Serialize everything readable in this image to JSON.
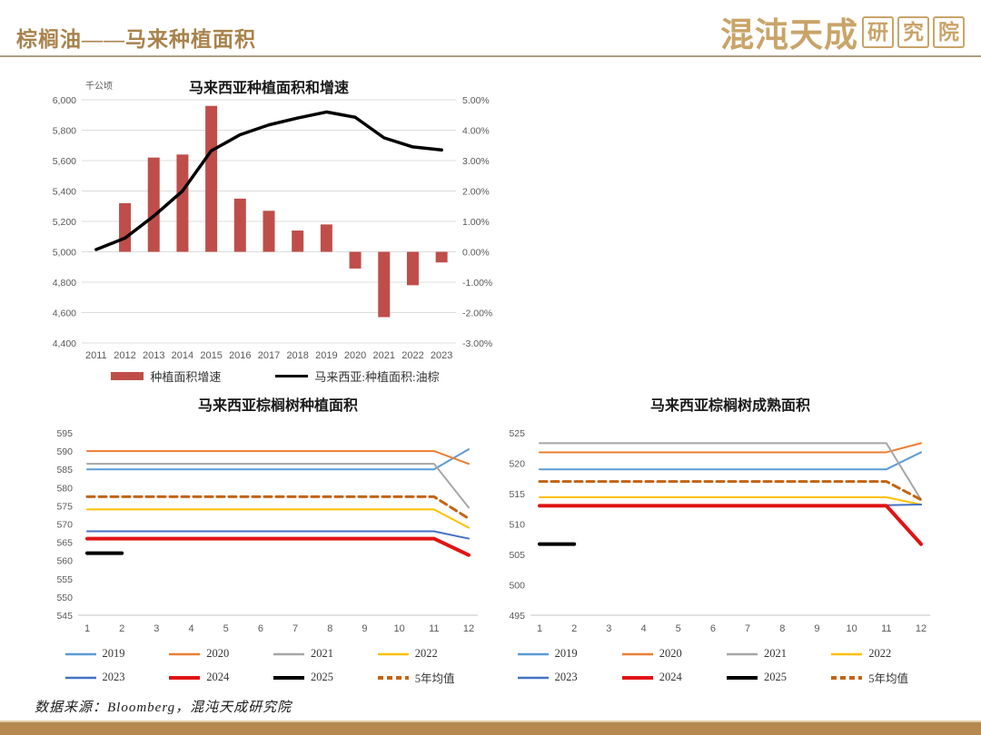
{
  "header": {
    "title": "棕榈油——马来种植面积",
    "logo": {
      "brand": "混沌天成",
      "suffix_chars": [
        "研",
        "究",
        "院"
      ]
    }
  },
  "footer": {
    "source": "数据来源：Bloomberg，混沌天成研究院"
  },
  "palette": {
    "accent_gold": "#a9834c",
    "logo_gold": "#c9a469",
    "bar_red": "#bf4e4a",
    "bottom_bar": "#b5894f",
    "gridline": "#dcdcdc",
    "axis_text": "#595959"
  },
  "chart_data": [
    {
      "type": "bar",
      "title": "马来西亚种植面积和增速",
      "y_left": {
        "label": "千公顷",
        "min": 4400,
        "max": 6000,
        "step": 200
      },
      "y_right": {
        "min": -3,
        "max": 5,
        "step": 1,
        "suffix": "%"
      },
      "categories": [
        "2011",
        "2012",
        "2013",
        "2014",
        "2015",
        "2016",
        "2017",
        "2018",
        "2019",
        "2020",
        "2021",
        "2022",
        "2023"
      ],
      "grid": true,
      "legend_position": "bottom",
      "series": [
        {
          "name": "种植面积增速",
          "kind": "bar",
          "axis": "right",
          "color": "#bf4e4a",
          "values": [
            null,
            1.6,
            3.1,
            3.2,
            4.8,
            1.75,
            1.35,
            0.7,
            0.9,
            -0.55,
            -2.15,
            -1.1,
            -0.35
          ]
        },
        {
          "name": "马来西亚:种植面积:油棕",
          "kind": "line",
          "axis": "left",
          "color": "#000000",
          "width": 3.5,
          "values": [
            5015,
            5090,
            5235,
            5400,
            5665,
            5770,
            5835,
            5880,
            5920,
            5885,
            5750,
            5690,
            5670
          ]
        }
      ]
    },
    {
      "type": "line",
      "title": "马来西亚棕榈树种植面积",
      "x": [
        1,
        2,
        3,
        4,
        5,
        6,
        7,
        8,
        9,
        10,
        11,
        12
      ],
      "ylim": [
        545,
        595
      ],
      "ystep": 5,
      "grid": false,
      "legend_position": "bottom",
      "series": [
        {
          "name": "2019",
          "color": "#5b9bd5",
          "width": 2,
          "values": [
            585,
            585,
            585,
            585,
            585,
            585,
            585,
            585,
            585,
            585,
            585,
            590.5
          ]
        },
        {
          "name": "2020",
          "color": "#ed7d31",
          "width": 2,
          "values": [
            590,
            590,
            590,
            590,
            590,
            590,
            590,
            590,
            590,
            590,
            590,
            586.5
          ]
        },
        {
          "name": "2021",
          "color": "#a6a6a6",
          "width": 2,
          "values": [
            586.5,
            586.5,
            586.5,
            586.5,
            586.5,
            586.5,
            586.5,
            586.5,
            586.5,
            586.5,
            586.5,
            574.5
          ]
        },
        {
          "name": "2022",
          "color": "#ffc000",
          "width": 2,
          "values": [
            574,
            574,
            574,
            574,
            574,
            574,
            574,
            574,
            574,
            574,
            574,
            569
          ]
        },
        {
          "name": "2023",
          "color": "#4472c4",
          "width": 2,
          "values": [
            568,
            568,
            568,
            568,
            568,
            568,
            568,
            568,
            568,
            568,
            568,
            566
          ]
        },
        {
          "name": "2024",
          "color": "#e01414",
          "width": 4,
          "values": [
            566,
            566,
            566,
            566,
            566,
            566,
            566,
            566,
            566,
            566,
            566,
            561.5
          ]
        },
        {
          "name": "2025",
          "color": "#000000",
          "width": 4,
          "values": [
            562,
            562,
            null,
            null,
            null,
            null,
            null,
            null,
            null,
            null,
            null,
            null
          ]
        },
        {
          "name": "5年均值",
          "color": "#c26414",
          "width": 3,
          "dashed": true,
          "values": [
            577.5,
            577.5,
            577.5,
            577.5,
            577.5,
            577.5,
            577.5,
            577.5,
            577.5,
            577.5,
            577.5,
            571.5
          ]
        }
      ]
    },
    {
      "type": "line",
      "title": "马来西亚棕榈树成熟面积",
      "x": [
        1,
        2,
        3,
        4,
        5,
        6,
        7,
        8,
        9,
        10,
        11,
        12
      ],
      "ylim": [
        495,
        525
      ],
      "ystep": 5,
      "grid": false,
      "legend_position": "bottom",
      "series": [
        {
          "name": "2019",
          "color": "#5b9bd5",
          "width": 2,
          "values": [
            519,
            519,
            519,
            519,
            519,
            519,
            519,
            519,
            519,
            519,
            519,
            521.8
          ]
        },
        {
          "name": "2020",
          "color": "#ed7d31",
          "width": 2,
          "values": [
            521.8,
            521.8,
            521.8,
            521.8,
            521.8,
            521.8,
            521.8,
            521.8,
            521.8,
            521.8,
            521.8,
            523.3
          ]
        },
        {
          "name": "2021",
          "color": "#a6a6a6",
          "width": 2,
          "values": [
            523.3,
            523.3,
            523.3,
            523.3,
            523.3,
            523.3,
            523.3,
            523.3,
            523.3,
            523.3,
            523.3,
            514
          ]
        },
        {
          "name": "2022",
          "color": "#ffc000",
          "width": 2,
          "values": [
            514.4,
            514.4,
            514.4,
            514.4,
            514.4,
            514.4,
            514.4,
            514.4,
            514.4,
            514.4,
            514.4,
            513.2
          ]
        },
        {
          "name": "2023",
          "color": "#4472c4",
          "width": 2,
          "values": [
            513.1,
            513.1,
            513.1,
            513.1,
            513.1,
            513.1,
            513.1,
            513.1,
            513.1,
            513.1,
            513.1,
            513.2
          ]
        },
        {
          "name": "2024",
          "color": "#e01414",
          "width": 4,
          "values": [
            513,
            513,
            513,
            513,
            513,
            513,
            513,
            513,
            513,
            513,
            513,
            506.7
          ]
        },
        {
          "name": "2025",
          "color": "#000000",
          "width": 4,
          "values": [
            506.7,
            506.7,
            null,
            null,
            null,
            null,
            null,
            null,
            null,
            null,
            null,
            null
          ]
        },
        {
          "name": "5年均值",
          "color": "#c26414",
          "width": 3,
          "dashed": true,
          "values": [
            517,
            517,
            517,
            517,
            517,
            517,
            517,
            517,
            517,
            517,
            517,
            514
          ]
        }
      ]
    }
  ]
}
